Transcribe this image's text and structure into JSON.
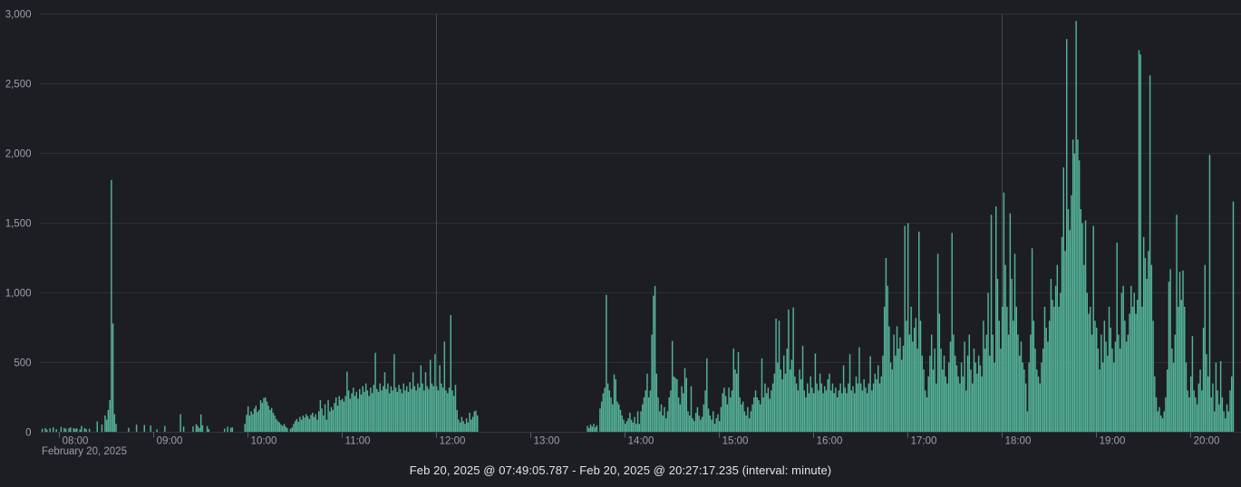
{
  "footer": {
    "time_range_label": "Feb 20, 2025 @ 07:49:05.787 - Feb 20, 2025 @ 20:27:17.235 (interval: minute)"
  },
  "colors": {
    "background": "#1d1e24",
    "bar": "#54b399",
    "gridline": "#2c2e35",
    "gridline_strong": "#46484e",
    "axis_line": "#34373f",
    "tick": "#595c64",
    "axis_label": "#9aa0a8",
    "footer_text": "#e2e4e9"
  },
  "chart_data": {
    "type": "bar",
    "interval": "minute",
    "time_start": "Feb 20, 2025 @ 07:49:05.787",
    "time_end": "Feb 20, 2025 @ 20:27:17.235",
    "ylim": [
      0,
      3000
    ],
    "y_tick_values": [
      0,
      500,
      1000,
      1500,
      2000,
      2500,
      3000
    ],
    "y_tick_labels": [
      "0",
      "500",
      "1,000",
      "1,500",
      "2,000",
      "2,500",
      "3,000"
    ],
    "x_tick_labels": [
      "08:00",
      "09:00",
      "10:00",
      "11:00",
      "12:00",
      "13:00",
      "14:00",
      "15:00",
      "16:00",
      "17:00",
      "18:00",
      "19:00",
      "20:00"
    ],
    "x_date_label": "February 20, 2025",
    "x_tick_start_minute": 11,
    "x_tick_interval_minutes": 60,
    "vertical_gridlines_at": [
      "12:00",
      "18:00"
    ],
    "series_start_time": "07:49",
    "x_unit": "minutes since 07:49",
    "bar_color": "#54b399",
    "values_per_minute": [
      25,
      0,
      30,
      18,
      0,
      28,
      0,
      35,
      0,
      22,
      0,
      0,
      38,
      0,
      30,
      25,
      0,
      28,
      35,
      0,
      30,
      25,
      28,
      0,
      20,
      45,
      0,
      30,
      22,
      0,
      25,
      0,
      0,
      0,
      0,
      78,
      0,
      0,
      55,
      0,
      120,
      90,
      160,
      230,
      1810,
      780,
      130,
      60,
      0,
      0,
      0,
      0,
      0,
      0,
      0,
      32,
      0,
      0,
      0,
      0,
      55,
      0,
      0,
      0,
      0,
      52,
      0,
      0,
      0,
      48,
      0,
      0,
      0,
      20,
      0,
      0,
      0,
      0,
      45,
      0,
      0,
      0,
      0,
      0,
      0,
      0,
      0,
      0,
      130,
      0,
      40,
      0,
      0,
      0,
      0,
      0,
      42,
      0,
      58,
      45,
      30,
      128,
      50,
      0,
      0,
      45,
      22,
      0,
      0,
      0,
      0,
      0,
      0,
      0,
      0,
      0,
      26,
      0,
      40,
      0,
      32,
      35,
      0,
      0,
      0,
      0,
      0,
      0,
      0,
      60,
      125,
      185,
      120,
      150,
      130,
      170,
      190,
      145,
      160,
      230,
      210,
      245,
      250,
      220,
      190,
      160,
      175,
      140,
      120,
      95,
      80,
      70,
      55,
      45,
      60,
      40,
      30,
      0,
      25,
      35,
      60,
      80,
      95,
      75,
      110,
      90,
      120,
      105,
      130,
      115,
      95,
      125,
      140,
      110,
      130,
      90,
      150,
      230,
      170,
      120,
      200,
      90,
      230,
      150,
      180,
      160,
      210,
      250,
      190,
      260,
      230,
      240,
      220,
      260,
      435,
      300,
      240,
      280,
      320,
      260,
      290,
      240,
      310,
      270,
      330,
      290,
      350,
      300,
      260,
      320,
      280,
      340,
      570,
      310,
      290,
      350,
      300,
      330,
      430,
      310,
      350,
      280,
      330,
      300,
      560,
      320,
      290,
      340,
      310,
      280,
      350,
      300,
      330,
      290,
      360,
      310,
      430,
      330,
      300,
      350,
      320,
      480,
      350,
      300,
      430,
      330,
      310,
      520,
      350,
      330,
      560,
      330,
      300,
      480,
      350,
      320,
      650,
      300,
      280,
      320,
      840,
      300,
      260,
      340,
      160,
      90,
      70,
      110,
      80,
      60,
      100,
      70,
      140,
      90,
      110,
      150,
      155,
      120,
      0,
      0,
      0,
      0,
      0,
      0,
      0,
      0,
      0,
      0,
      0,
      0,
      0,
      0,
      0,
      0,
      0,
      0,
      0,
      0,
      0,
      0,
      0,
      0,
      0,
      0,
      0,
      0,
      0,
      0,
      0,
      0,
      0,
      0,
      0,
      0,
      0,
      0,
      0,
      0,
      0,
      0,
      0,
      0,
      0,
      0,
      0,
      0,
      0,
      0,
      0,
      0,
      0,
      0,
      0,
      0,
      0,
      0,
      0,
      0,
      0,
      0,
      0,
      0,
      0,
      0,
      0,
      0,
      0,
      45,
      30,
      55,
      40,
      60,
      35,
      50,
      0,
      170,
      220,
      280,
      320,
      985,
      350,
      300,
      250,
      200,
      415,
      380,
      220,
      200,
      160,
      120,
      90,
      60,
      80,
      100,
      140,
      90,
      70,
      110,
      60,
      150,
      60,
      150,
      200,
      250,
      300,
      420,
      250,
      300,
      700,
      980,
      1050,
      420,
      250,
      150,
      200,
      120,
      180,
      100,
      150,
      250,
      300,
      655,
      400,
      390,
      380,
      250,
      200,
      330,
      280,
      460,
      390,
      150,
      120,
      330,
      100,
      80,
      140,
      180,
      120,
      90,
      110,
      200,
      300,
      530,
      170,
      120,
      90,
      150,
      60,
      100,
      130,
      80,
      180,
      280,
      320,
      260,
      200,
      320,
      250,
      300,
      600,
      450,
      420,
      575,
      250,
      200,
      220,
      150,
      120,
      180,
      100,
      150,
      200,
      250,
      300,
      250,
      230,
      200,
      530,
      250,
      350,
      280,
      320,
      240,
      300,
      350,
      420,
      815,
      500,
      800,
      450,
      380,
      550,
      420,
      600,
      880,
      450,
      520,
      895,
      400,
      350,
      300,
      450,
      380,
      620,
      300,
      250,
      350,
      280,
      400,
      320,
      280,
      565,
      350,
      300,
      420,
      350,
      280,
      330,
      300,
      380,
      420,
      300,
      350,
      280,
      320,
      250,
      300,
      350,
      280,
      480,
      320,
      280,
      350,
      560,
      300,
      330,
      280,
      400,
      350,
      610,
      350,
      300,
      380,
      320,
      280,
      350,
      545,
      300,
      350,
      420,
      380,
      480,
      350,
      400,
      550,
      900,
      1250,
      1050,
      760,
      500,
      450,
      700,
      550,
      760,
      600,
      680,
      520,
      620,
      1480,
      800,
      1500,
      700,
      900,
      650,
      750,
      820,
      600,
      1440,
      800,
      550,
      450,
      300,
      250,
      400,
      550,
      700,
      450,
      600,
      350,
      1280,
      850,
      600,
      450,
      550,
      400,
      350,
      500,
      650,
      1430,
      700,
      550,
      480,
      400,
      350,
      500,
      400,
      650,
      300,
      550,
      700,
      450,
      350,
      600,
      500,
      420,
      550,
      480,
      400,
      800,
      600,
      700,
      1000,
      550,
      1560,
      700,
      500,
      1620,
      1100,
      800,
      600,
      900,
      1720,
      1200,
      900,
      700,
      1570,
      1100,
      800,
      1280,
      900,
      700,
      550,
      650,
      500,
      450,
      350,
      150,
      500,
      700,
      1320,
      800,
      600,
      450,
      400,
      350,
      500,
      600,
      900,
      750,
      650,
      800,
      1100,
      950,
      900,
      1050,
      1200,
      900,
      1000,
      1400,
      1900,
      1300,
      2820,
      1600,
      1450,
      1700,
      2100,
      2000,
      2950,
      2100,
      1950,
      1600,
      1500,
      1200,
      1520,
      1000,
      850,
      900,
      700,
      1480,
      800,
      750,
      600,
      450,
      700,
      500,
      800,
      650,
      550,
      900,
      750,
      600,
      500,
      650,
      1360,
      700,
      600,
      1000,
      1050,
      800,
      650,
      700,
      850,
      1050,
      900,
      1000,
      850,
      950,
      2740,
      2710,
      900,
      1400,
      1250,
      1100,
      1300,
      2560,
      1200,
      800,
      400,
      250,
      150,
      180,
      120,
      100,
      150,
      250,
      450,
      1080,
      1170,
      600,
      500,
      700,
      1560,
      900,
      1150,
      950,
      1160,
      900,
      500,
      300,
      250,
      400,
      690,
      300,
      250,
      200,
      350,
      450,
      300,
      750,
      1200,
      560,
      400,
      1990,
      250,
      350,
      150,
      500,
      300,
      200,
      510,
      250,
      150,
      100,
      200,
      150,
      300,
      400,
      1655
    ]
  }
}
